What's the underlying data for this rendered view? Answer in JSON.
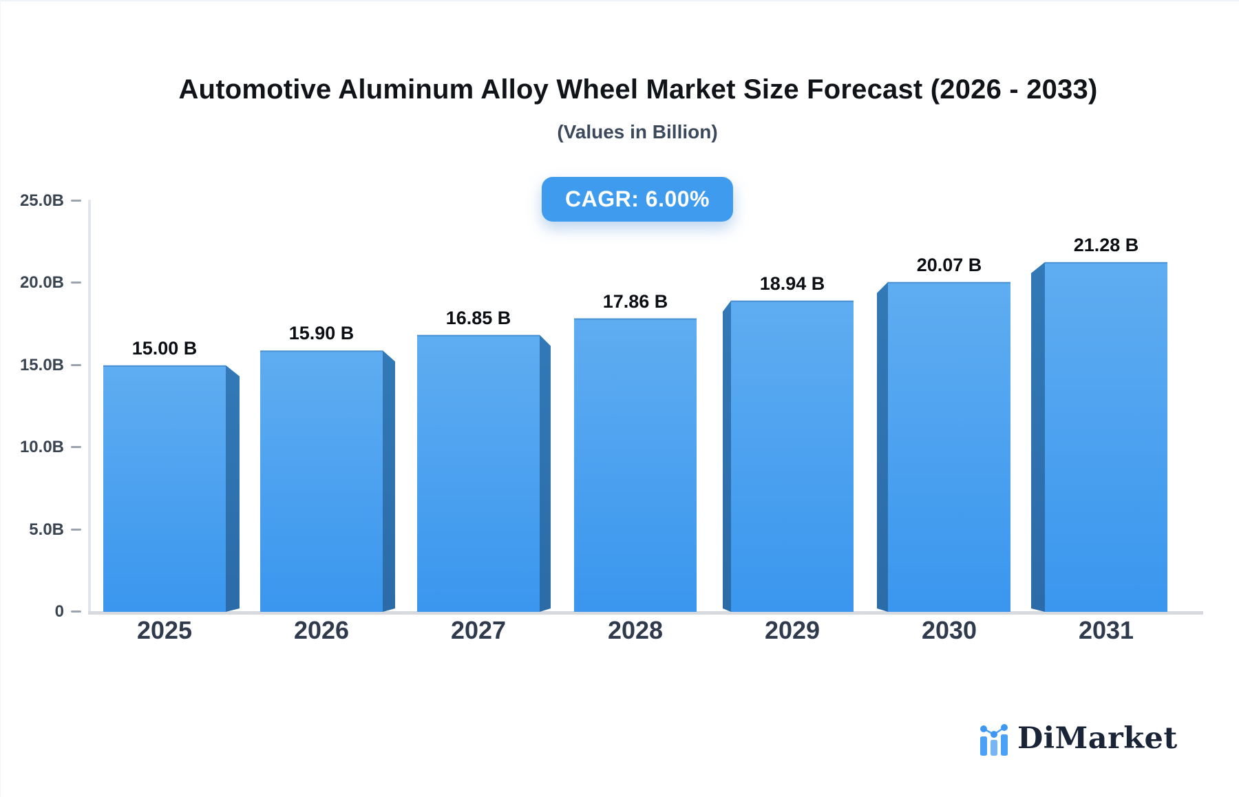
{
  "header": {
    "title": "Automotive Aluminum Alloy Wheel Market Size Forecast (2026 - 2033)",
    "subtitle": "(Values in Billion)"
  },
  "cagr_badge": {
    "label": "CAGR: 6.00%"
  },
  "chart_data": {
    "type": "bar",
    "title": "Automotive Aluminum Alloy Wheel Market Size Forecast (2026 - 2033)",
    "subtitle": "(Values in Billion)",
    "categories": [
      "2025",
      "2026",
      "2027",
      "2028",
      "2029",
      "2030",
      "2031"
    ],
    "values": [
      15.0,
      15.9,
      16.85,
      17.86,
      18.94,
      20.07,
      21.28
    ],
    "bar_labels": [
      "15.00 B",
      "15.90 B",
      "16.85 B",
      "17.86 B",
      "18.94 B",
      "20.07 B",
      "21.28 B"
    ],
    "unit": "Billion",
    "cagr": "6.00%",
    "xlabel": "",
    "ylabel": "",
    "ylim": [
      0,
      25
    ],
    "grid": false,
    "legend": null,
    "y_ticks": [
      {
        "value": 25,
        "label": "25.0B"
      },
      {
        "value": 20,
        "label": "20.0B"
      },
      {
        "value": 15,
        "label": "15.0B"
      },
      {
        "value": 10,
        "label": "10.0B"
      },
      {
        "value": 5,
        "label": "5.0B"
      },
      {
        "value": 0,
        "label": "0"
      }
    ],
    "colors": {
      "bar_face_top": "#5FADF1",
      "bar_face_bottom": "#3A96EE",
      "bar_side_top": "#3279B7",
      "bar_side_bottom": "#2B6BA7",
      "bar_top_edge": "rgba(32,92,152,0.35)",
      "badge_background": "#3E9BEE",
      "axis_line": "#e2e5ea",
      "baseline": "#d6dade",
      "tick": "#9aa4b0"
    }
  },
  "logo": {
    "text": "DiMarket",
    "icon": "dimarket-bars-logo-icon",
    "icon_color": "#4BA1F5"
  }
}
